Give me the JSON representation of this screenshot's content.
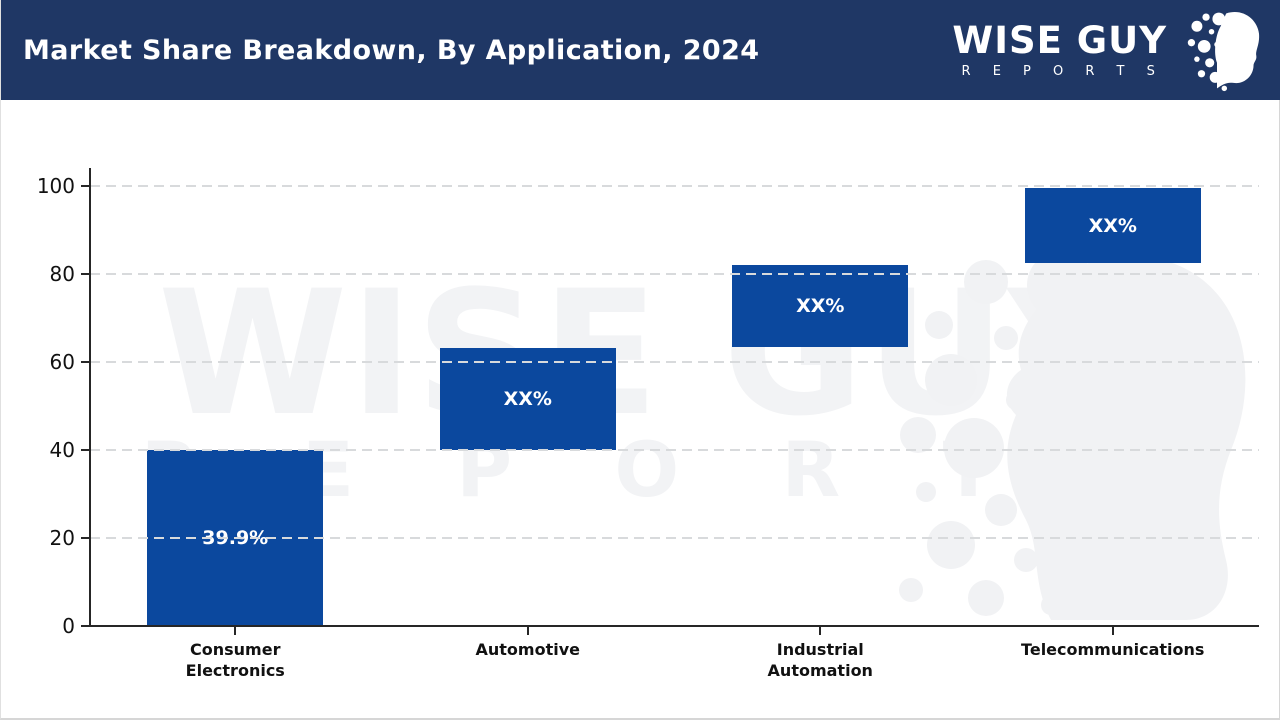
{
  "header": {
    "title": "Market Share Breakdown, By Application, 2024",
    "logo": {
      "name": "WISE GUY",
      "sub": "R E P O R T S"
    }
  },
  "watermark": {
    "big": "WISE GUY",
    "small": "R E P O R T S"
  },
  "colors": {
    "header_bg": "#1F3765",
    "bar": "#0B489E",
    "grid": "#D8DADC",
    "axis": "#262626",
    "watermark": "#F2F3F5",
    "bar_label": "#FFFFFF"
  },
  "chart_data": {
    "type": "bar",
    "subtype": "waterfall",
    "title": "Market Share Breakdown, By Application, 2024",
    "xlabel": "",
    "ylabel": "",
    "ylim": [
      0,
      100
    ],
    "yticks": [
      0,
      20,
      40,
      60,
      80,
      100
    ],
    "grid": "horizontal-dashed",
    "legend": "none",
    "categories": [
      "Consumer\nElectronics",
      "Automotive",
      "Industrial\nAutomation",
      "Telecommunications"
    ],
    "segments": [
      {
        "category": "Consumer Electronics",
        "start": 0,
        "end": 39.9,
        "label": "39.9%"
      },
      {
        "category": "Automotive",
        "start": 40,
        "end": 63.2,
        "label": "XX%"
      },
      {
        "category": "Industrial Automation",
        "start": 63.5,
        "end": 82,
        "label": "XX%"
      },
      {
        "category": "Telecommunications",
        "start": 82.4,
        "end": 99.6,
        "label": "XX%"
      }
    ]
  }
}
